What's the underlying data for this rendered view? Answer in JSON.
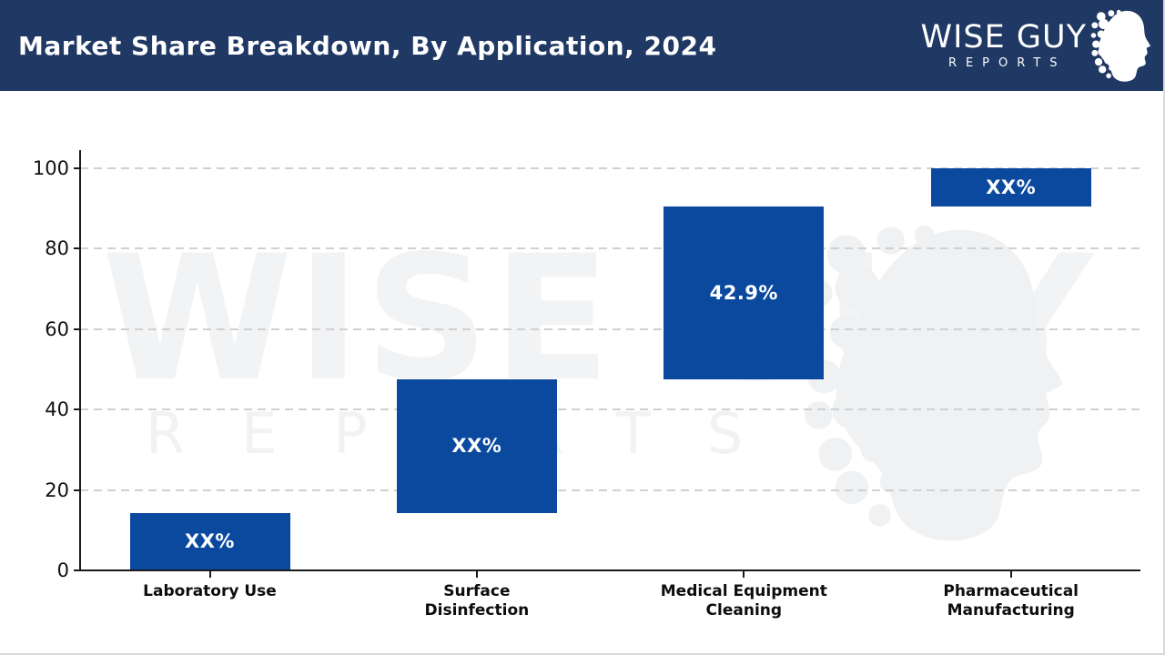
{
  "header": {
    "title": "Market Share Breakdown, By Application, 2024",
    "bg_color": "#1f3864",
    "logo": {
      "brand_top": "WISE GUY",
      "brand_bottom": "REPORTS"
    }
  },
  "watermark": {
    "brand_top": "WISE GUY",
    "brand_bottom": "REPORTS"
  },
  "chart_data": {
    "type": "bar",
    "subtype": "floating-waterfall",
    "title": "Market Share Breakdown, By Application, 2024",
    "categories": [
      "Laboratory Use",
      "Surface Disinfection",
      "Medical Equipment Cleaning",
      "Pharmaceutical Manufacturing"
    ],
    "category_lines": [
      [
        "Laboratory Use"
      ],
      [
        "Surface",
        "Disinfection"
      ],
      [
        "Medical Equipment",
        "Cleaning"
      ],
      [
        "Pharmaceutical",
        "Manufacturing"
      ]
    ],
    "bars": [
      {
        "category": "Laboratory Use",
        "start": 0,
        "end": 14.3,
        "value": 14.3,
        "label": "XX%"
      },
      {
        "category": "Surface Disinfection",
        "start": 14.3,
        "end": 47.6,
        "value": 33.3,
        "label": "XX%"
      },
      {
        "category": "Medical Equipment Cleaning",
        "start": 47.6,
        "end": 90.5,
        "value": 42.9,
        "label": "42.9%"
      },
      {
        "category": "Pharmaceutical Manufacturing",
        "start": 90.5,
        "end": 100,
        "value": 9.5,
        "label": "XX%"
      }
    ],
    "yticks": [
      0,
      20,
      40,
      60,
      80,
      100
    ],
    "ylim": [
      0,
      104
    ],
    "xlabel": "",
    "ylabel": "",
    "grid": {
      "axis": "y",
      "style": "dashed",
      "color": "#d0d0d0"
    },
    "legend": null,
    "bar_color": "#0b499f",
    "bar_label_color": "#ffffff"
  }
}
